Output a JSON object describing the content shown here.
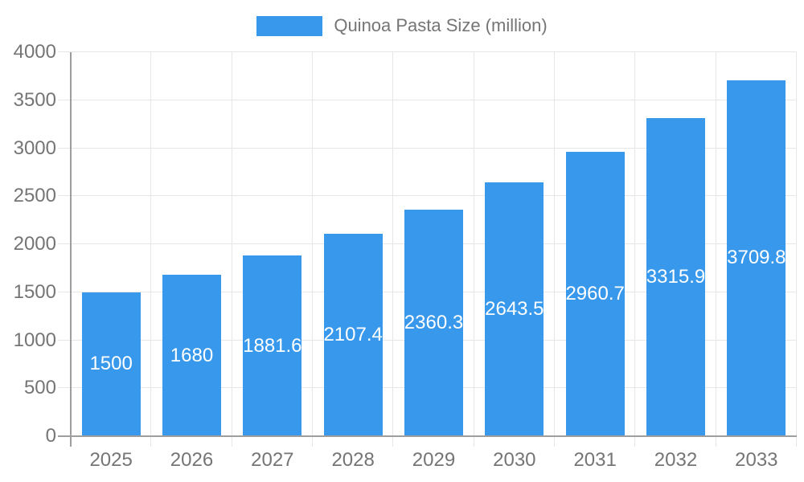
{
  "legend": {
    "label": "Quinoa Pasta Size (million)"
  },
  "chart_data": {
    "type": "bar",
    "title": "Quinoa Pasta Size (million)",
    "categories": [
      "2025",
      "2026",
      "2027",
      "2028",
      "2029",
      "2030",
      "2031",
      "2032",
      "2033"
    ],
    "series": [
      {
        "name": "Quinoa Pasta Size (million)",
        "values": [
          1500,
          1680,
          1881.6,
          2107.4,
          2360.3,
          2643.5,
          2960.7,
          3315.9,
          3709.8
        ]
      }
    ],
    "value_labels": [
      "1500",
      "1680",
      "1881.6",
      "2107.4",
      "2360.3",
      "2643.5",
      "2960.7",
      "3315.9",
      "3709.8"
    ],
    "xlabel": "",
    "ylabel": "",
    "ylim": [
      0,
      4000
    ],
    "yticks": [
      0,
      500,
      1000,
      1500,
      2000,
      2500,
      3000,
      3500,
      4000
    ],
    "grid": true,
    "legend_position": "top-center",
    "colors": {
      "bar": "#3898ec",
      "grid": "#e6e6e6",
      "axis": "#9e9e9e",
      "text": "#757575",
      "value_label": "#ffffff",
      "background": "#ffffff"
    }
  }
}
